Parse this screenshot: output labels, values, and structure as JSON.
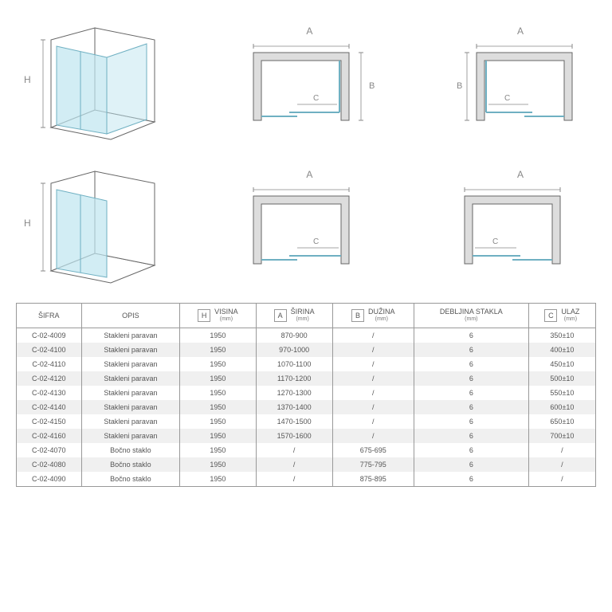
{
  "colors": {
    "glass": "#bfe5f0",
    "glass_edge": "#6fb0c2",
    "frame": "#666666",
    "frame_light": "#cccccc",
    "dim_line": "#888888",
    "bg": "#ffffff"
  },
  "dimension_keys": {
    "H": "H",
    "A": "A",
    "B": "B",
    "C": "C"
  },
  "table": {
    "headers": {
      "sifra": "ŠIFRA",
      "opis": "OPIS",
      "visina": "VISINA",
      "visina_unit": "(mm)",
      "sirina": "ŠIRINA",
      "sirina_unit": "(mm)",
      "duzina": "DUŽINA",
      "duzina_unit": "(mm)",
      "debljina": "DEBLJINA STAKLA",
      "debljina_unit": "(mm)",
      "ulaz": "ULAZ",
      "ulaz_unit": "(mm)"
    },
    "rows": [
      {
        "sifra": "C-02-4009",
        "opis": "Stakleni paravan",
        "visina": "1950",
        "sirina": "870-900",
        "duzina": "/",
        "debljina": "6",
        "ulaz": "350±10"
      },
      {
        "sifra": "C-02-4100",
        "opis": "Stakleni paravan",
        "visina": "1950",
        "sirina": "970-1000",
        "duzina": "/",
        "debljina": "6",
        "ulaz": "400±10"
      },
      {
        "sifra": "C-02-4110",
        "opis": "Stakleni paravan",
        "visina": "1950",
        "sirina": "1070-1100",
        "duzina": "/",
        "debljina": "6",
        "ulaz": "450±10"
      },
      {
        "sifra": "C-02-4120",
        "opis": "Stakleni paravan",
        "visina": "1950",
        "sirina": "1170-1200",
        "duzina": "/",
        "debljina": "6",
        "ulaz": "500±10"
      },
      {
        "sifra": "C-02-4130",
        "opis": "Stakleni paravan",
        "visina": "1950",
        "sirina": "1270-1300",
        "duzina": "/",
        "debljina": "6",
        "ulaz": "550±10"
      },
      {
        "sifra": "C-02-4140",
        "opis": "Stakleni paravan",
        "visina": "1950",
        "sirina": "1370-1400",
        "duzina": "/",
        "debljina": "6",
        "ulaz": "600±10"
      },
      {
        "sifra": "C-02-4150",
        "opis": "Stakleni paravan",
        "visina": "1950",
        "sirina": "1470-1500",
        "duzina": "/",
        "debljina": "6",
        "ulaz": "650±10"
      },
      {
        "sifra": "C-02-4160",
        "opis": "Stakleni paravan",
        "visina": "1950",
        "sirina": "1570-1600",
        "duzina": "/",
        "debljina": "6",
        "ulaz": "700±10"
      },
      {
        "sifra": "C-02-4070",
        "opis": "Bočno staklo",
        "visina": "1950",
        "sirina": "/",
        "duzina": "675-695",
        "debljina": "6",
        "ulaz": "/"
      },
      {
        "sifra": "C-02-4080",
        "opis": "Bočno staklo",
        "visina": "1950",
        "sirina": "/",
        "duzina": "775-795",
        "debljina": "6",
        "ulaz": "/"
      },
      {
        "sifra": "C-02-4090",
        "opis": "Bočno staklo",
        "visina": "1950",
        "sirina": "/",
        "duzina": "875-895",
        "debljina": "6",
        "ulaz": "/"
      }
    ]
  }
}
